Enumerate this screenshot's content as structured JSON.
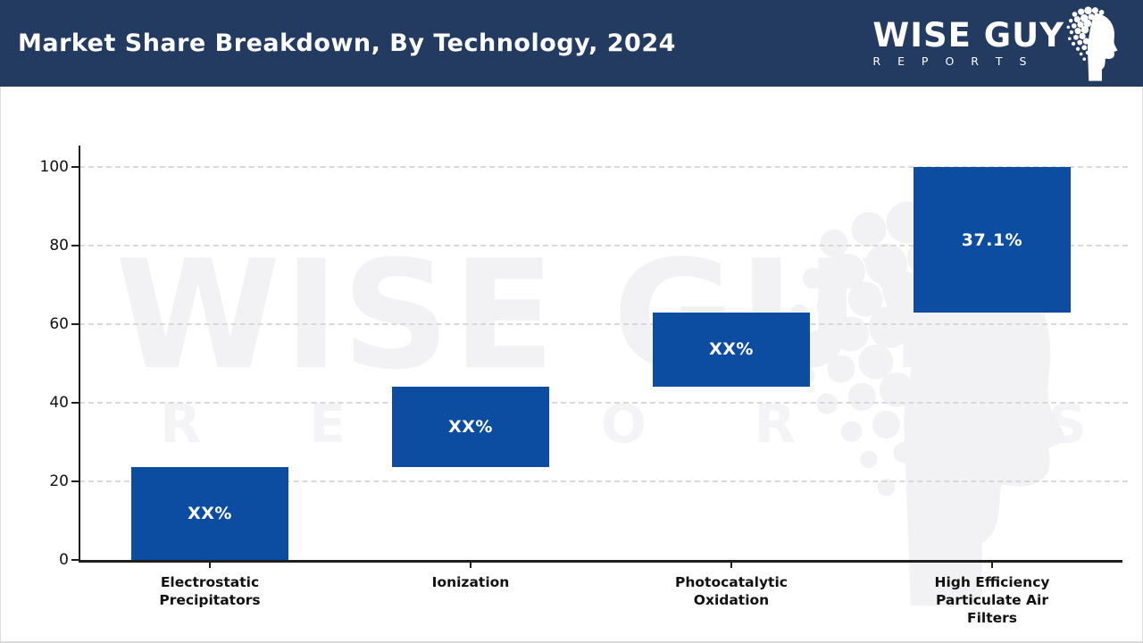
{
  "header": {
    "title": "Market Share Breakdown, By Technology, 2024",
    "logo": {
      "name": "WISE GUY",
      "sub": "R E P O R T S"
    },
    "bg_color": "#233a61"
  },
  "watermark": {
    "line1": "WISE GUY",
    "line2": "R E P O R T S",
    "color": "#f2f2f4"
  },
  "chart_data": {
    "type": "bar",
    "subtype": "waterfall",
    "title": "Market Share Breakdown, By Technology, 2024",
    "categories": [
      "Electrostatic Precipitators",
      "Ionization",
      "Photocatalytic Oxidation",
      "High Efficiency Particulate Air Filters"
    ],
    "series": [
      {
        "name": "Market Share (%)",
        "starts": [
          0,
          23.7,
          44.2,
          62.9
        ],
        "values": [
          23.7,
          20.5,
          18.7,
          37.1
        ]
      }
    ],
    "bar_labels": [
      "XX%",
      "XX%",
      "XX%",
      "37.1%"
    ],
    "xlabel": "",
    "ylabel": "",
    "ylim": [
      0,
      100
    ],
    "yticks": [
      0,
      20,
      40,
      60,
      80,
      100
    ],
    "grid": "horizontal-dashed",
    "legend": "none",
    "bar_color": "#0d4da1",
    "bar_label_color": "#ffffff",
    "axis_color": "#1f1f1f",
    "grid_color": "#d9d9d9"
  }
}
